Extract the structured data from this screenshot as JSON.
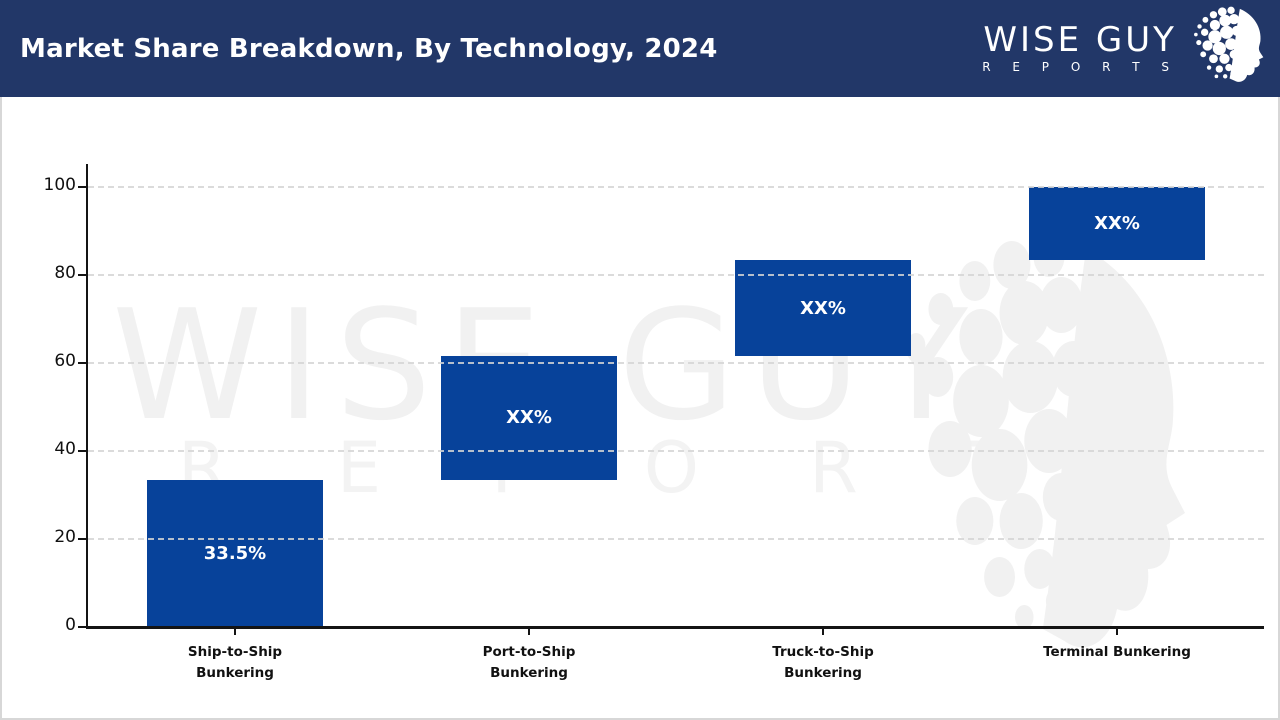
{
  "header": {
    "title": "Market Share Breakdown, By Technology, 2024",
    "background_color": "#223768",
    "logo": {
      "line1": "WISE GUY",
      "line2": "R E P O R T S",
      "icon": "head-profile-dots-icon"
    }
  },
  "watermark": {
    "line1": "WISE GUY",
    "line2": "R E P O R T S",
    "icon": "head-profile-dots-icon"
  },
  "chart_data": {
    "type": "bar",
    "variant": "floating-waterfall",
    "title": "Market Share Breakdown, By Technology, 2024",
    "categories": [
      "Ship-to-Ship\nBunkering",
      "Port-to-Ship\nBunkering",
      "Truck-to-Ship\nBunkering",
      "Terminal Bunkering"
    ],
    "series": [
      {
        "name": "Market Share (%)",
        "segments": [
          {
            "category": "Ship-to-Ship Bunkering",
            "start": 0,
            "end": 33.5,
            "label": "33.5%"
          },
          {
            "category": "Port-to-Ship Bunkering",
            "start": 33.5,
            "end": 61.5,
            "label": "XX%"
          },
          {
            "category": "Truck-to-Ship Bunkering",
            "start": 61.5,
            "end": 83.3,
            "label": "XX%"
          },
          {
            "category": "Terminal Bunkering",
            "start": 83.3,
            "end": 100,
            "label": "XX%"
          }
        ]
      }
    ],
    "ylim": [
      0,
      105
    ],
    "yticks": [
      0,
      20,
      40,
      60,
      80,
      100
    ],
    "grid": {
      "axis": "y",
      "style": "dashed",
      "color": "#d5d5d5"
    },
    "bar_color": "#07429a",
    "bar_label_color": "#ffffff",
    "axis_color": "#141414",
    "legend": "none"
  }
}
